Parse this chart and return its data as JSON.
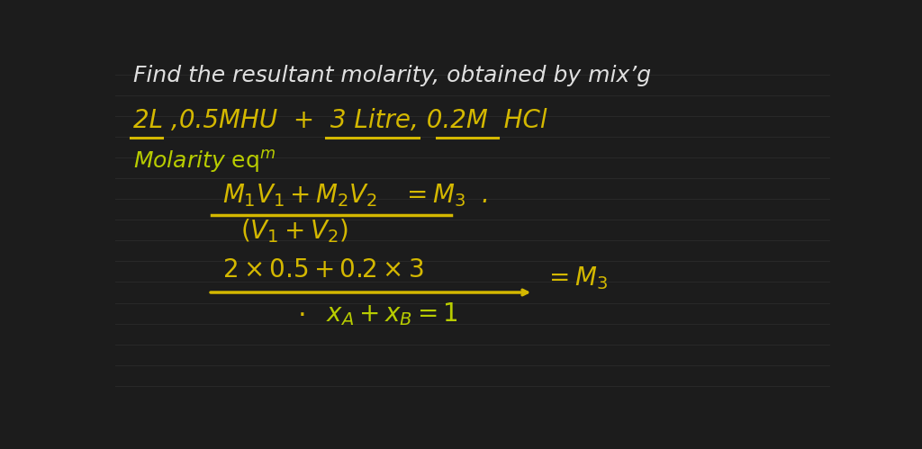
{
  "background_color": "#1c1c1c",
  "text_color_white": "#e0e0e0",
  "text_color_yellow": "#d4b800",
  "text_color_green": "#b8cc00",
  "figsize": [
    10.24,
    4.99
  ],
  "dpi": 100
}
